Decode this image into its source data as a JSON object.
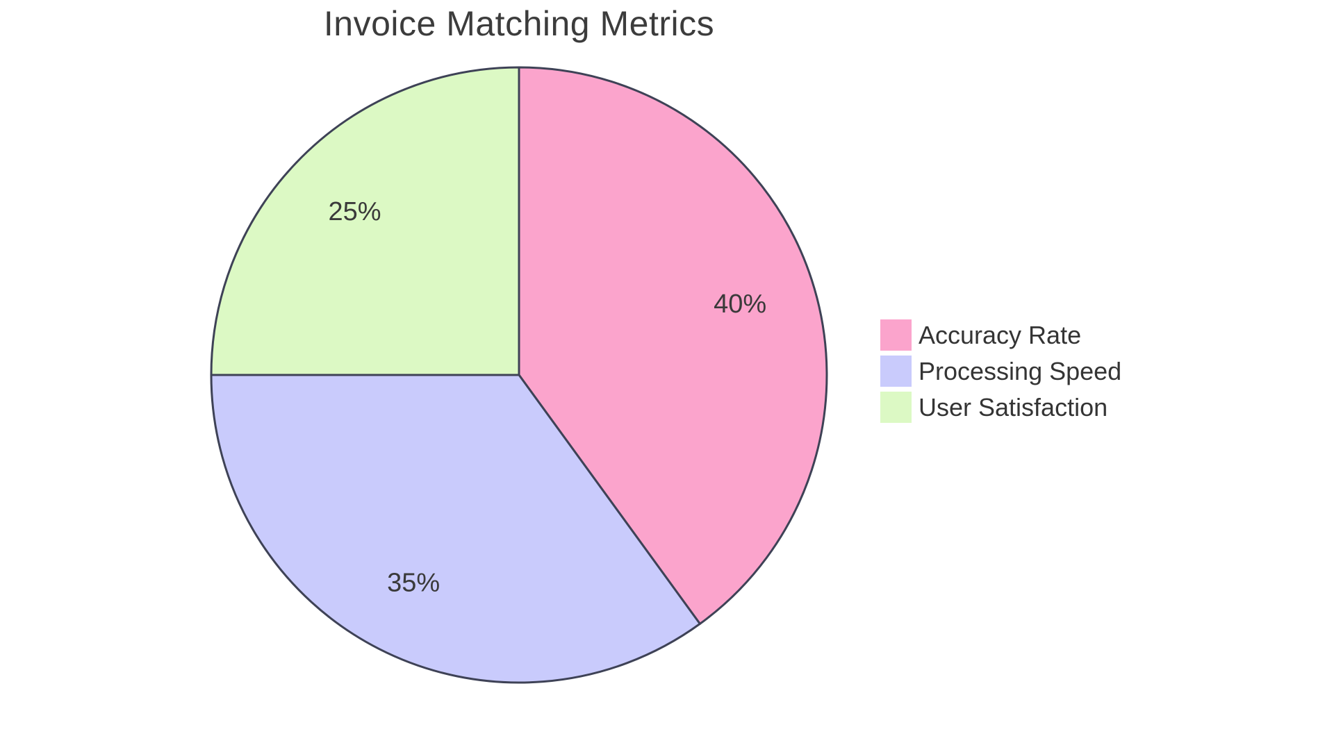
{
  "chart_data": {
    "type": "pie",
    "title": "Invoice Matching Metrics",
    "categories": [
      "Accuracy Rate",
      "Processing Speed",
      "User Satisfaction"
    ],
    "values": [
      40,
      35,
      25
    ],
    "slice_labels": [
      "40%",
      "35%",
      "25%"
    ],
    "colors": [
      "#FBA4CC",
      "#C9CBFC",
      "#DCF9C4"
    ],
    "start_angle_deg": 0,
    "direction": "clockwise",
    "legend_position": "right",
    "grid": false,
    "stroke_color": "#3E4256",
    "stroke_width": 3,
    "label_color": "#3A3A3A",
    "title_color": "#3C3C3C",
    "legend_text_color": "#343434",
    "label_radius_fraction": 0.755,
    "background_color": "#FFFFFF"
  }
}
